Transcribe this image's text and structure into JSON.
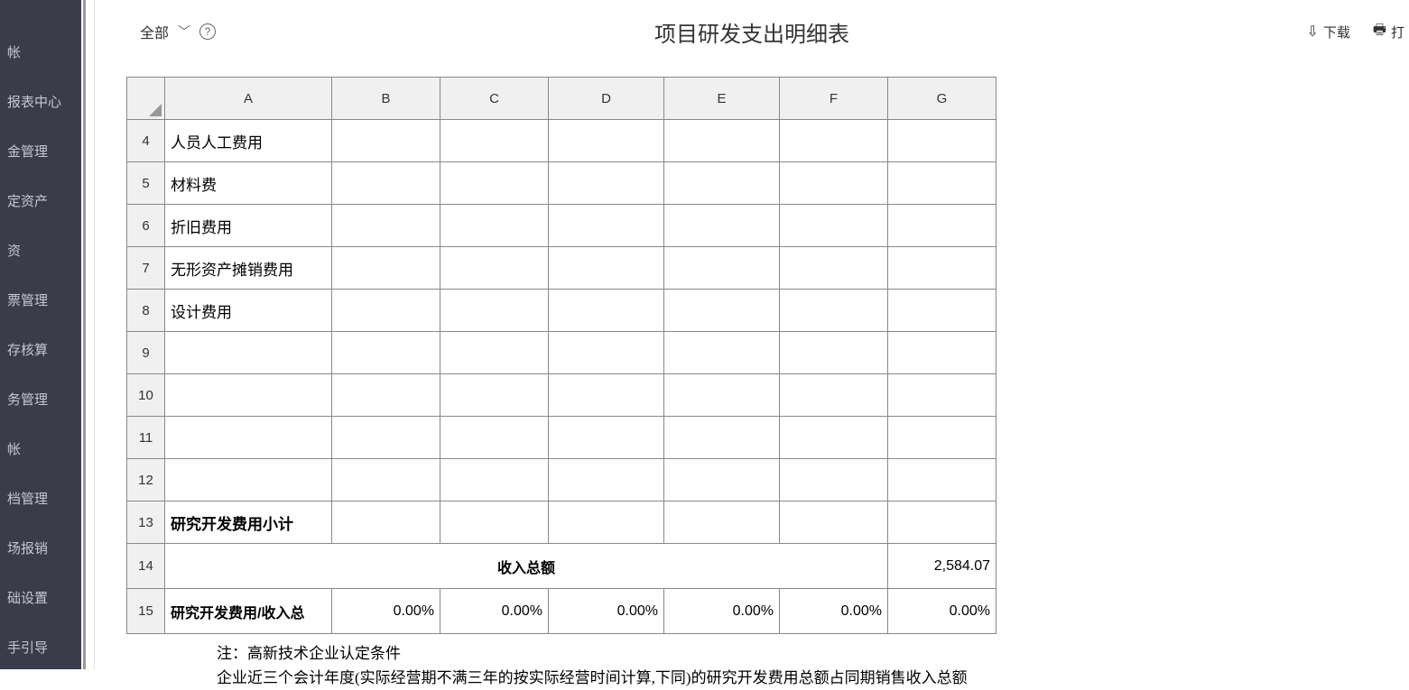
{
  "sidebar": {
    "items": [
      {
        "label": "帐"
      },
      {
        "label": "报表中心"
      },
      {
        "label": "金管理"
      },
      {
        "label": "定资产"
      },
      {
        "label": "资"
      },
      {
        "label": "票管理"
      },
      {
        "label": "存核算"
      },
      {
        "label": "务管理"
      },
      {
        "label": "帐"
      },
      {
        "label": "档管理"
      },
      {
        "label": "场报销"
      },
      {
        "label": "础设置"
      },
      {
        "label": "手引导"
      }
    ]
  },
  "toolbar": {
    "filter_label": "全部",
    "download_label": "下载",
    "print_label": "打"
  },
  "title": "项目研发支出明细表",
  "sheet": {
    "columns": [
      "A",
      "B",
      "C",
      "D",
      "E",
      "F",
      "G"
    ],
    "row_headers": [
      "4",
      "5",
      "6",
      "7",
      "8",
      "9",
      "10",
      "11",
      "12",
      "13",
      "14",
      "15"
    ],
    "rows": {
      "4": {
        "A": "人员人工费用"
      },
      "5": {
        "A": "材料费"
      },
      "6": {
        "A": "折旧费用"
      },
      "7": {
        "A": "无形资产摊销费用"
      },
      "8": {
        "A": "设计费用"
      },
      "9": {},
      "10": {},
      "11": {},
      "12": {},
      "13": {
        "A": "研究开发费用小计"
      },
      "14": {
        "merged_label": "收入总额",
        "G": "2,584.07"
      },
      "15": {
        "A": "研究开发费用/收入总",
        "B": "0.00%",
        "C": "0.00%",
        "D": "0.00%",
        "E": "0.00%",
        "F": "0.00%",
        "G": "0.00%"
      }
    }
  },
  "notes": {
    "line1": "注：高新技术企业认定条件",
    "line2": "企业近三个会计年度(实际经营期不满三年的按实际经营时间计算,下同)的研究开发费用总额占同期销售收入总额"
  },
  "colors": {
    "sidebar_bg": "#3a3c4a",
    "sidebar_text": "#c5c7d0",
    "accent": "#3fc1cb",
    "header_bg": "#f0f0f0",
    "border": "#888"
  }
}
